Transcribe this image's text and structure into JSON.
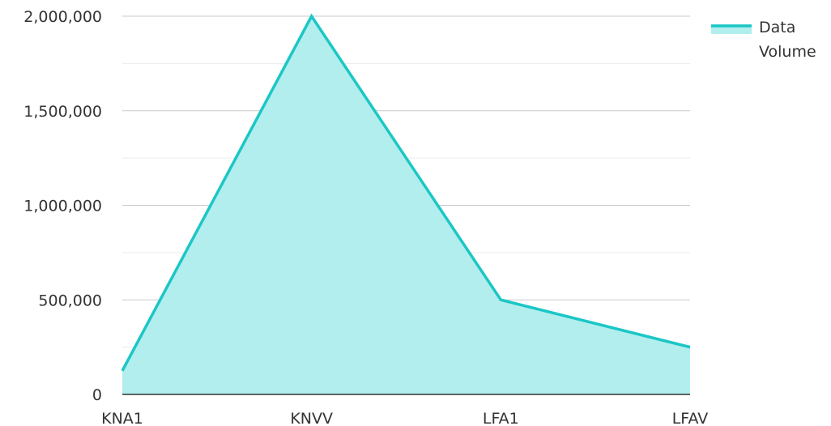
{
  "chart_data": {
    "type": "area",
    "categories": [
      "KNA1",
      "KNVV",
      "LFA1",
      "LFAV"
    ],
    "series": [
      {
        "name": "Data Volume",
        "values": [
          125000,
          2000000,
          500000,
          250000
        ],
        "color": "#1CC6C6",
        "fill": "#B2EEEE"
      }
    ],
    "y_ticks": [
      "0",
      "500,000",
      "1,000,000",
      "1,500,000",
      "2,000,000"
    ],
    "y_tick_values": [
      0,
      500000,
      1000000,
      1500000,
      2000000
    ],
    "ylim": [
      0,
      2000000
    ],
    "grid": true,
    "minor_grid": true,
    "legend_position": "top-right",
    "legend_label_lines": [
      "Data",
      "Volume"
    ]
  }
}
